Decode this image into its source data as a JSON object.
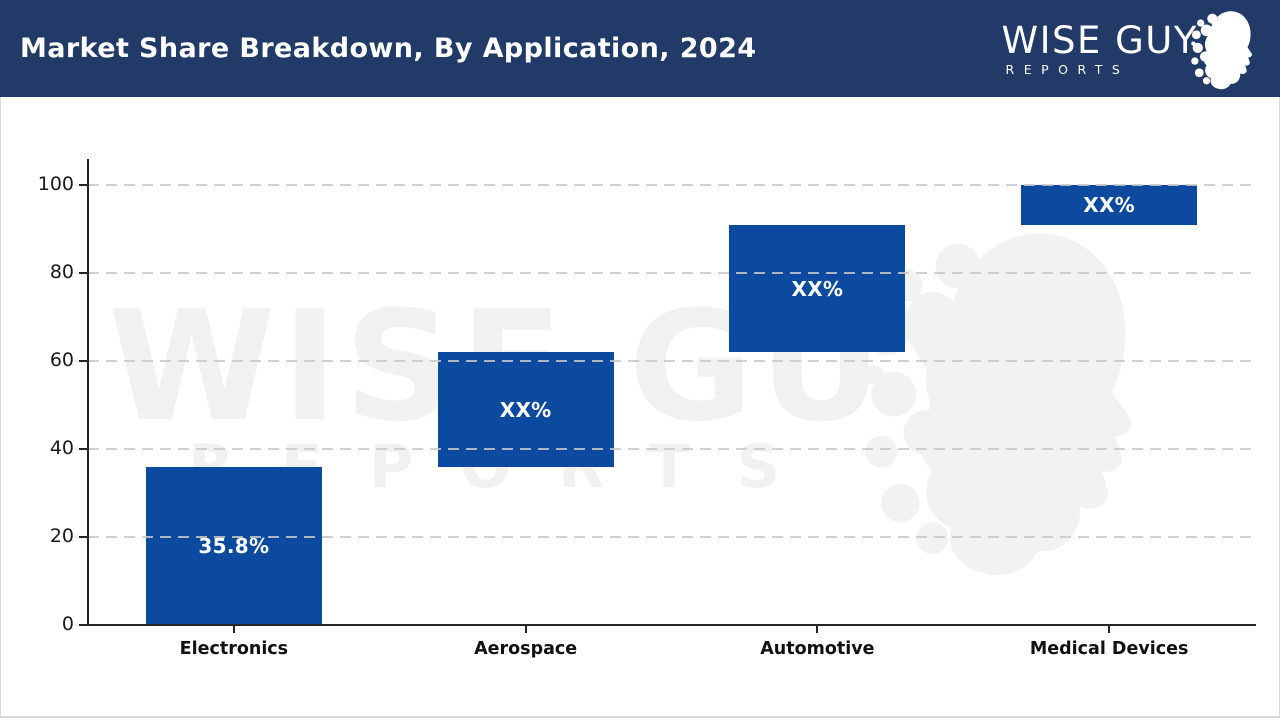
{
  "header": {
    "title": "Market Share Breakdown, By Application, 2024",
    "logo": {
      "line1": "WISE GUY",
      "line2": "REPORTS"
    }
  },
  "watermark": {
    "line1": "WISE GUY",
    "line2": "REPORTS"
  },
  "chart_data": {
    "type": "bar",
    "subtype": "waterfall-floating-bars",
    "title": "Market Share Breakdown, By Application, 2024",
    "categories": [
      "Electronics",
      "Aerospace",
      "Automotive",
      "Medical Devices"
    ],
    "segments": [
      {
        "category": "Electronics",
        "start": 0,
        "end": 35.8,
        "value": 35.8,
        "label": "35.8%"
      },
      {
        "category": "Aerospace",
        "start": 35.8,
        "end": 62.0,
        "value": 26.2,
        "label": "XX%"
      },
      {
        "category": "Automotive",
        "start": 62.0,
        "end": 90.9,
        "value": 28.9,
        "label": "XX%"
      },
      {
        "category": "Medical Devices",
        "start": 90.9,
        "end": 100.0,
        "value": 9.1,
        "label": "XX%"
      }
    ],
    "xlabel": "",
    "ylabel": "",
    "ylim": [
      0,
      105
    ],
    "yticks": [
      0,
      20,
      40,
      60,
      80,
      100
    ],
    "grid": "horizontal-dashed",
    "legend": "none",
    "bar_color": "#0b4a9e",
    "bar_label_color": "#ffffff",
    "axis_color": "#262626",
    "gridline_color": "#c8c8c8"
  },
  "colors": {
    "header_bg": "#213a67",
    "title_text": "#ffffff",
    "watermark": "#f1f1f1",
    "background": "#ffffff",
    "edge_border": "#d9d9d9"
  }
}
